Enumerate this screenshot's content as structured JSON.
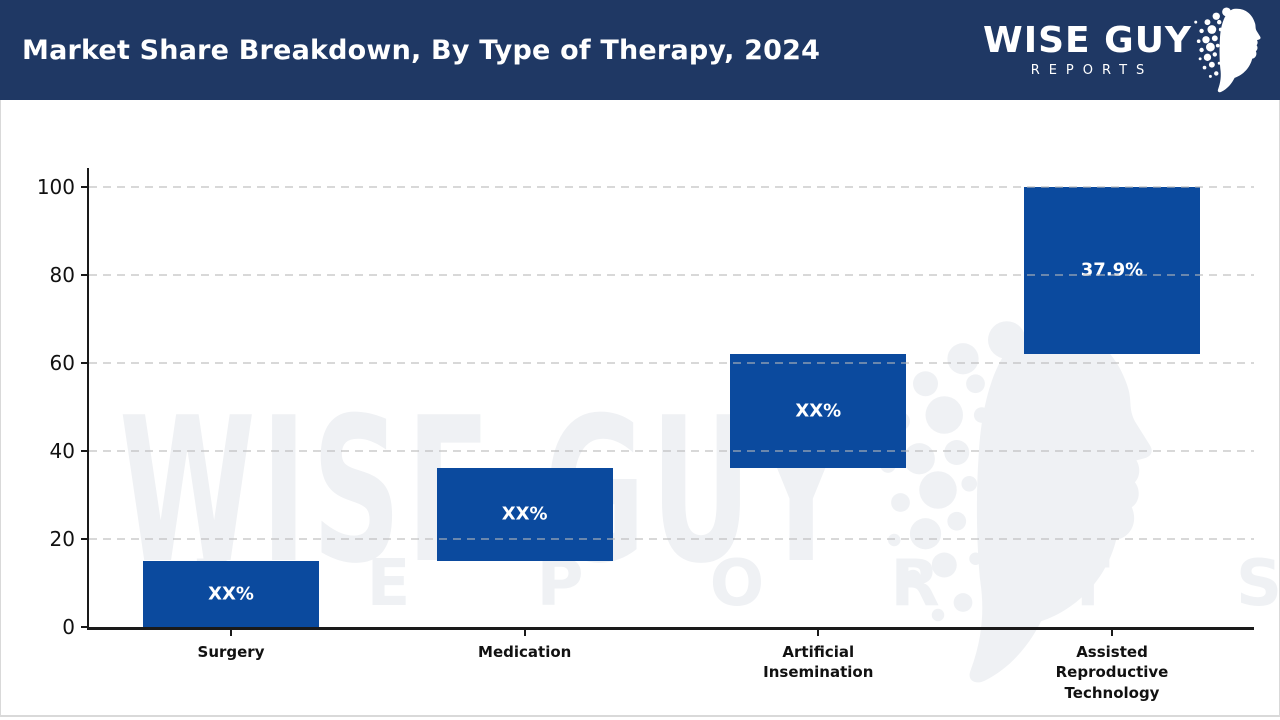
{
  "header": {
    "title": "Market Share Breakdown, By Type of Therapy, 2024",
    "bg_color": "#1f3864",
    "logo": {
      "line1": "WISE GUY",
      "line2": "REPORTS"
    }
  },
  "watermark": {
    "line1": "WISE GUY",
    "line2": "R E P O R T S"
  },
  "chart_data": {
    "type": "bar",
    "subtype": "waterfall",
    "title": "Market Share Breakdown, By Type of Therapy, 2024",
    "categories": [
      "Surgery",
      "Medication",
      "Artificial\nInsemination",
      "Assisted\nReproductive\nTechnology"
    ],
    "segments": [
      {
        "category": "Surgery",
        "start": 0,
        "end": 15.0,
        "value": 15.0,
        "label": "XX%"
      },
      {
        "category": "Medication",
        "start": 15.0,
        "end": 36.2,
        "value": 21.2,
        "label": "XX%"
      },
      {
        "category": "Artificial Insemination",
        "start": 36.2,
        "end": 62.1,
        "value": 25.9,
        "label": "XX%"
      },
      {
        "category": "Assisted Reproductive Technology",
        "start": 62.1,
        "end": 100,
        "value": 37.9,
        "label": "37.9%"
      }
    ],
    "yticks": [
      0,
      20,
      40,
      60,
      80,
      100
    ],
    "ylim": [
      0,
      104
    ],
    "grid": true,
    "grid_style": "dashed",
    "legend": "none",
    "bar_color": "#0b4a9e",
    "bar_label_color": "#ffffff",
    "watermark_color": "#eff1f4"
  }
}
